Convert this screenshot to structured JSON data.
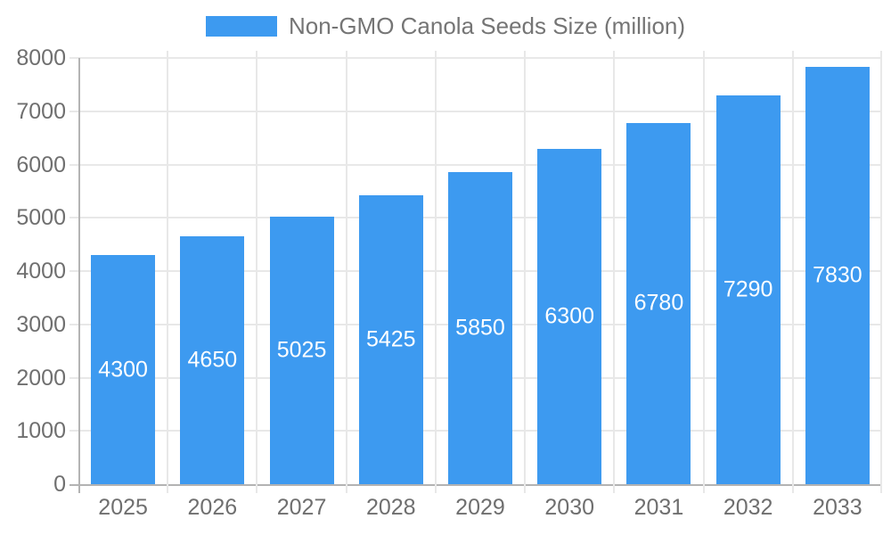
{
  "chart_data": {
    "type": "bar",
    "title": "Non-GMO Canola Seeds Size (million)",
    "categories": [
      "2025",
      "2026",
      "2027",
      "2028",
      "2029",
      "2030",
      "2031",
      "2032",
      "2033"
    ],
    "values": [
      4300,
      4650,
      5025,
      5425,
      5850,
      6300,
      6780,
      7290,
      7830
    ],
    "ylabel": "",
    "xlabel": "",
    "ylim": [
      0,
      8000
    ],
    "ytick_step": 1000,
    "grid": true,
    "legend_position": "top",
    "bar_value_labels": true,
    "colors": {
      "bar": "#3d9af0",
      "bar_label": "#ffffff",
      "axis_line": "#b3b3b3",
      "gridline": "#e8e8e8",
      "tick_label": "#6f6f6f",
      "legend_text": "#757575"
    }
  }
}
